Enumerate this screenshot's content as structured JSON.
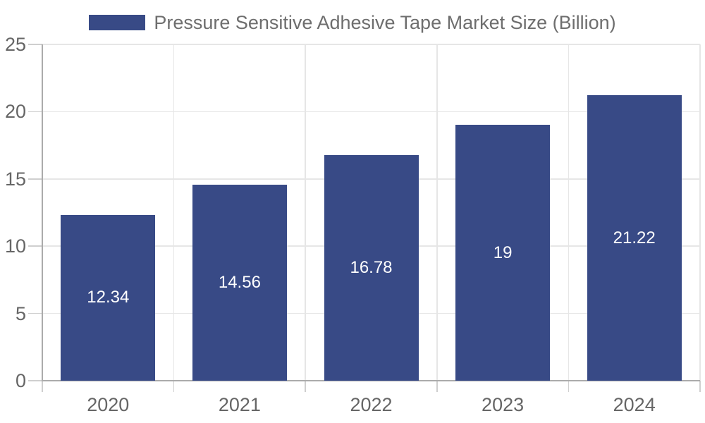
{
  "chart_data": {
    "type": "bar",
    "title": "",
    "legend": {
      "position": "top",
      "entries": [
        "Pressure Sensitive Adhesive Tape Market Size (Billion)"
      ]
    },
    "categories": [
      "2020",
      "2021",
      "2022",
      "2023",
      "2024"
    ],
    "series": [
      {
        "name": "Pressure Sensitive Adhesive Tape Market Size (Billion)",
        "values": [
          12.34,
          14.56,
          16.78,
          19,
          21.22
        ],
        "data_labels": [
          "12.34",
          "14.56",
          "16.78",
          "19",
          "21.22"
        ]
      }
    ],
    "xlabel": "",
    "ylabel": "",
    "ylim": [
      0,
      25
    ],
    "yticks": [
      0,
      5,
      10,
      15,
      20,
      25
    ],
    "grid": true,
    "colors": {
      "bar": "#384A86",
      "grid": "#e6e6e6",
      "axis": "#ababab",
      "tick": "#cfcfcf",
      "axis_label": "#666666",
      "legend_text": "#6e6e6e",
      "data_label": "#ffffff",
      "background": "#ffffff"
    }
  }
}
